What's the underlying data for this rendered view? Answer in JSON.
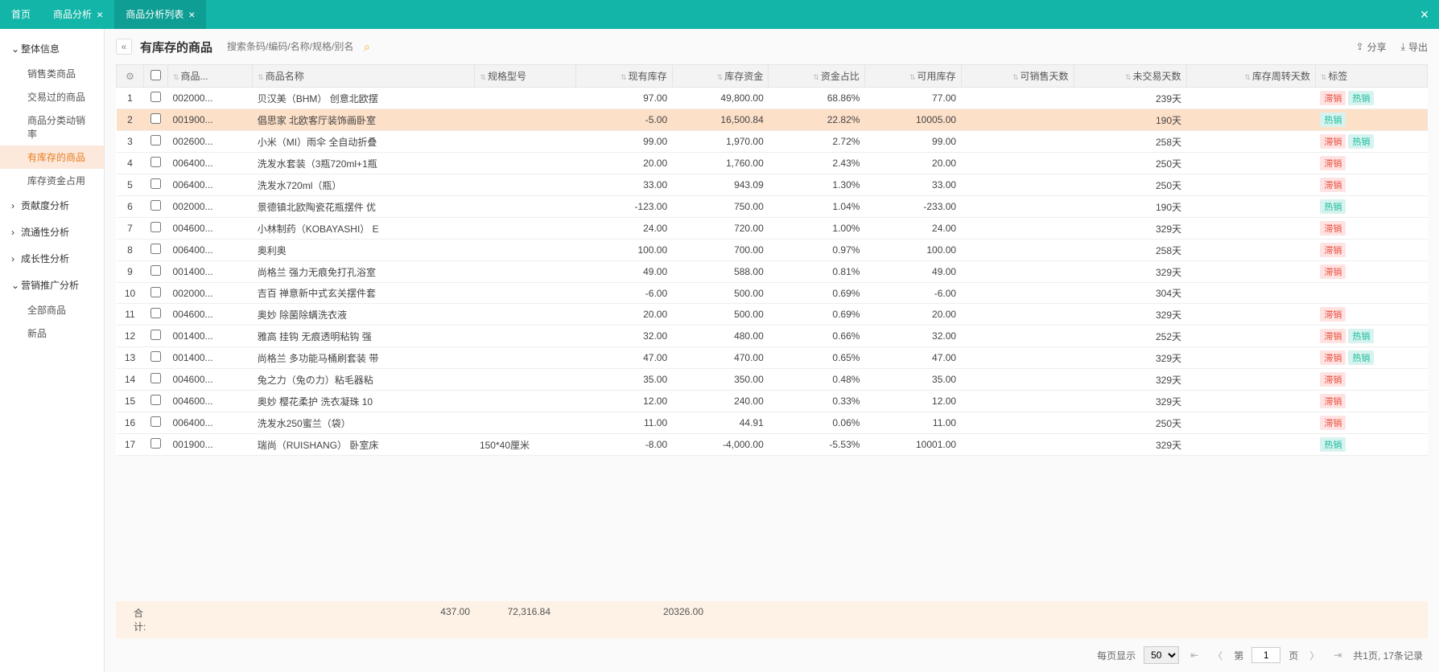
{
  "colors": {
    "brand": "#12b5a8",
    "accent": "#e67e22",
    "highlight_row": "#fde0c8",
    "totals_bg": "#fdf2e5"
  },
  "tabs": [
    {
      "label": "首页",
      "closable": false,
      "active": false
    },
    {
      "label": "商品分析",
      "closable": true,
      "active": false
    },
    {
      "label": "商品分析列表",
      "closable": true,
      "active": true
    }
  ],
  "sidebar": [
    {
      "label": "整体信息",
      "open": true,
      "items": [
        "销售类商品",
        "交易过的商品",
        "商品分类动销率",
        "有库存的商品",
        "库存资金占用"
      ],
      "selected": "有库存的商品"
    },
    {
      "label": "贡献度分析",
      "open": false,
      "items": []
    },
    {
      "label": "流通性分析",
      "open": false,
      "items": []
    },
    {
      "label": "成长性分析",
      "open": false,
      "items": []
    },
    {
      "label": "营销推广分析",
      "open": true,
      "items": [
        "全部商品",
        "新品"
      ],
      "selected": null
    }
  ],
  "page": {
    "title": "有库存的商品",
    "search_placeholder": "搜索条码/编码/名称/规格/别名",
    "share": "分享",
    "export": "导出"
  },
  "table": {
    "columns": [
      "",
      "",
      "商品...",
      "商品名称",
      "规格型号",
      "现有库存",
      "库存资金",
      "资金占比",
      "可用库存",
      "可销售天数",
      "未交易天数",
      "库存周转天数",
      "标签"
    ],
    "rows": [
      {
        "n": 1,
        "code": "002000...",
        "name": "贝汉美（BHM） 创意北欧摆",
        "spec": "",
        "stock": "97.00",
        "fund": "49,800.00",
        "pct": "68.86%",
        "avail": "77.00",
        "sell": "",
        "notrade": "239天",
        "turn": "",
        "tags": [
          "滞销",
          "热销"
        ]
      },
      {
        "n": 2,
        "code": "001900...",
        "name": "倡思家 北欧客厅装饰画卧室",
        "spec": "",
        "stock": "-5.00",
        "fund": "16,500.84",
        "pct": "22.82%",
        "avail": "10005.00",
        "sell": "",
        "notrade": "190天",
        "turn": "",
        "tags": [
          "热销"
        ],
        "highlight": true
      },
      {
        "n": 3,
        "code": "002600...",
        "name": "小米（MI）雨伞 全自动折叠",
        "spec": "",
        "stock": "99.00",
        "fund": "1,970.00",
        "pct": "2.72%",
        "avail": "99.00",
        "sell": "",
        "notrade": "258天",
        "turn": "",
        "tags": [
          "滞销",
          "热销"
        ]
      },
      {
        "n": 4,
        "code": "006400...",
        "name": "洗发水套装（3瓶720ml+1瓶",
        "spec": "",
        "stock": "20.00",
        "fund": "1,760.00",
        "pct": "2.43%",
        "avail": "20.00",
        "sell": "",
        "notrade": "250天",
        "turn": "",
        "tags": [
          "滞销"
        ]
      },
      {
        "n": 5,
        "code": "006400...",
        "name": "洗发水720ml（瓶）",
        "spec": "",
        "stock": "33.00",
        "fund": "943.09",
        "pct": "1.30%",
        "avail": "33.00",
        "sell": "",
        "notrade": "250天",
        "turn": "",
        "tags": [
          "滞销"
        ]
      },
      {
        "n": 6,
        "code": "002000...",
        "name": "景德镇北欧陶瓷花瓶摆件 优",
        "spec": "",
        "stock": "-123.00",
        "fund": "750.00",
        "pct": "1.04%",
        "avail": "-233.00",
        "sell": "",
        "notrade": "190天",
        "turn": "",
        "tags": [
          "热销"
        ]
      },
      {
        "n": 7,
        "code": "004600...",
        "name": "小林制药（KOBAYASHI） E",
        "spec": "",
        "stock": "24.00",
        "fund": "720.00",
        "pct": "1.00%",
        "avail": "24.00",
        "sell": "",
        "notrade": "329天",
        "turn": "",
        "tags": [
          "滞销"
        ]
      },
      {
        "n": 8,
        "code": "006400...",
        "name": "奥利奥",
        "spec": "",
        "stock": "100.00",
        "fund": "700.00",
        "pct": "0.97%",
        "avail": "100.00",
        "sell": "",
        "notrade": "258天",
        "turn": "",
        "tags": [
          "滞销"
        ]
      },
      {
        "n": 9,
        "code": "001400...",
        "name": "尚格兰 强力无痕免打孔浴室",
        "spec": "",
        "stock": "49.00",
        "fund": "588.00",
        "pct": "0.81%",
        "avail": "49.00",
        "sell": "",
        "notrade": "329天",
        "turn": "",
        "tags": [
          "滞销"
        ]
      },
      {
        "n": 10,
        "code": "002000...",
        "name": "吉百 禅意新中式玄关摆件套",
        "spec": "",
        "stock": "-6.00",
        "fund": "500.00",
        "pct": "0.69%",
        "avail": "-6.00",
        "sell": "",
        "notrade": "304天",
        "turn": "",
        "tags": []
      },
      {
        "n": 11,
        "code": "004600...",
        "name": "奥妙 除菌除螨洗衣液",
        "spec": "",
        "stock": "20.00",
        "fund": "500.00",
        "pct": "0.69%",
        "avail": "20.00",
        "sell": "",
        "notrade": "329天",
        "turn": "",
        "tags": [
          "滞销"
        ]
      },
      {
        "n": 12,
        "code": "001400...",
        "name": "雅高 挂钩 无痕透明粘钩 强",
        "spec": "",
        "stock": "32.00",
        "fund": "480.00",
        "pct": "0.66%",
        "avail": "32.00",
        "sell": "",
        "notrade": "252天",
        "turn": "",
        "tags": [
          "滞销",
          "热销"
        ]
      },
      {
        "n": 13,
        "code": "001400...",
        "name": "尚格兰 多功能马桶刷套装 带",
        "spec": "",
        "stock": "47.00",
        "fund": "470.00",
        "pct": "0.65%",
        "avail": "47.00",
        "sell": "",
        "notrade": "329天",
        "turn": "",
        "tags": [
          "滞销",
          "热销"
        ]
      },
      {
        "n": 14,
        "code": "004600...",
        "name": "兔之力（兔の力）粘毛器粘",
        "spec": "",
        "stock": "35.00",
        "fund": "350.00",
        "pct": "0.48%",
        "avail": "35.00",
        "sell": "",
        "notrade": "329天",
        "turn": "",
        "tags": [
          "滞销"
        ]
      },
      {
        "n": 15,
        "code": "004600...",
        "name": "奥妙 樱花柔护 洗衣凝珠 10",
        "spec": "",
        "stock": "12.00",
        "fund": "240.00",
        "pct": "0.33%",
        "avail": "12.00",
        "sell": "",
        "notrade": "329天",
        "turn": "",
        "tags": [
          "滞销"
        ]
      },
      {
        "n": 16,
        "code": "006400...",
        "name": "洗发水250蜜兰（袋）",
        "spec": "",
        "stock": "11.00",
        "fund": "44.91",
        "pct": "0.06%",
        "avail": "11.00",
        "sell": "",
        "notrade": "250天",
        "turn": "",
        "tags": [
          "滞销"
        ]
      },
      {
        "n": 17,
        "code": "001900...",
        "name": "瑞尚（RUISHANG） 卧室床",
        "spec": "150*40厘米",
        "stock": "-8.00",
        "fund": "-4,000.00",
        "pct": "-5.53%",
        "avail": "10001.00",
        "sell": "",
        "notrade": "329天",
        "turn": "",
        "tags": [
          "热销"
        ]
      }
    ],
    "totals": {
      "label": "合计:",
      "stock": "437.00",
      "fund": "72,316.84",
      "avail": "20326.00"
    }
  },
  "pager": {
    "per_page_label": "每页显示",
    "per_page": "50",
    "page_label_prefix": "第",
    "page": "1",
    "page_label_suffix": "页",
    "summary": "共1页, 17条记录"
  },
  "tag_styles": {
    "滞销": "tag-red",
    "热销": "tag-green"
  }
}
